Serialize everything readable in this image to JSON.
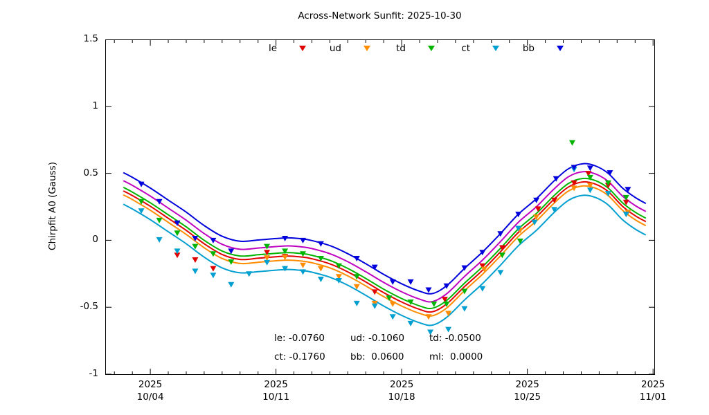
{
  "title": "Across-Network Sunfit: 2025-10-30",
  "ylabel": "Chirpfit A0 (Gauss)",
  "chart_data": {
    "type": "line",
    "title": "Across-Network Sunfit: 2025-10-30",
    "xlabel": "",
    "ylabel": "Chirpfit A0 (Gauss)",
    "ylim": [
      -1,
      1.5
    ],
    "yticks": [
      {
        "v": 1.5,
        "label": "1.5"
      },
      {
        "v": 1,
        "label": "1"
      },
      {
        "v": 0.5,
        "label": "0.5"
      },
      {
        "v": 0,
        "label": "0"
      },
      {
        "v": -0.5,
        "label": "-0.5"
      },
      {
        "v": -1,
        "label": "-1"
      }
    ],
    "x_axis": {
      "start_day": 1.49,
      "end_day": 32.07,
      "tick_days": [
        2,
        3,
        4,
        5,
        6,
        7,
        8,
        9,
        10,
        11,
        12,
        13,
        14,
        15,
        16,
        17,
        18,
        19,
        20,
        21,
        22,
        23,
        24,
        25,
        26,
        27,
        28,
        29,
        30,
        31,
        32
      ],
      "major_ticks": [
        {
          "day": 4,
          "year": "2025",
          "date": "10/04"
        },
        {
          "day": 11,
          "year": "2025",
          "date": "10/11"
        },
        {
          "day": 18,
          "year": "2025",
          "date": "10/18"
        },
        {
          "day": 25,
          "year": "2025",
          "date": "10/25"
        },
        {
          "day": 32,
          "year": "2025",
          "date": "11/01"
        }
      ]
    },
    "legend": [
      "le",
      "ud",
      "td",
      "ct",
      "bb"
    ],
    "colors": {
      "le": "#e00000",
      "ud": "#ff8c00",
      "td": "#00b400",
      "ct": "#009fd0",
      "bb": "#0000dd",
      "ml": "#c000c0"
    },
    "offsets": {
      "le": -0.076,
      "ud": -0.106,
      "td": -0.05,
      "ct": -0.176,
      "bb": 0.06,
      "ml": 0.0
    },
    "base_curve": [
      [
        2.5,
        0.445
      ],
      [
        3,
        0.41
      ],
      [
        4,
        0.33
      ],
      [
        5,
        0.24
      ],
      [
        6,
        0.15
      ],
      [
        7,
        0.05
      ],
      [
        8,
        -0.03
      ],
      [
        9,
        -0.067
      ],
      [
        10,
        -0.058
      ],
      [
        11,
        -0.047
      ],
      [
        11.7,
        -0.042
      ],
      [
        12.5,
        -0.05
      ],
      [
        13,
        -0.062
      ],
      [
        14,
        -0.1
      ],
      [
        15,
        -0.16
      ],
      [
        16,
        -0.235
      ],
      [
        17,
        -0.315
      ],
      [
        18,
        -0.385
      ],
      [
        19,
        -0.44
      ],
      [
        19.7,
        -0.458
      ],
      [
        20.5,
        -0.4
      ],
      [
        21.5,
        -0.27
      ],
      [
        22.5,
        -0.148
      ],
      [
        23.5,
        -0.01
      ],
      [
        24.5,
        0.135
      ],
      [
        25.5,
        0.25
      ],
      [
        26.5,
        0.385
      ],
      [
        27.3,
        0.475
      ],
      [
        28.1,
        0.512
      ],
      [
        28.8,
        0.495
      ],
      [
        29.5,
        0.44
      ],
      [
        30.3,
        0.33
      ],
      [
        31,
        0.26
      ],
      [
        31.6,
        0.215
      ]
    ],
    "markers": {
      "le": [
        [
          5.5,
          -0.11
        ],
        [
          6.5,
          -0.145
        ],
        [
          7.5,
          -0.21
        ],
        [
          10.5,
          -0.09
        ],
        [
          11.5,
          -0.12
        ],
        [
          16.5,
          -0.385
        ],
        [
          20.4,
          -0.44
        ],
        [
          22.5,
          -0.19
        ],
        [
          23.6,
          -0.055
        ],
        [
          25.6,
          0.235
        ],
        [
          26.5,
          0.3
        ],
        [
          27.6,
          0.43
        ],
        [
          28.4,
          0.5
        ],
        [
          29.5,
          0.41
        ],
        [
          30.5,
          0.285
        ]
      ],
      "ud": [
        [
          10.5,
          -0.13
        ],
        [
          11.5,
          -0.125
        ],
        [
          12.5,
          -0.185
        ],
        [
          13.5,
          -0.21
        ],
        [
          14.5,
          -0.27
        ],
        [
          15.5,
          -0.345
        ],
        [
          16.5,
          -0.47
        ],
        [
          17.5,
          -0.475
        ],
        [
          19.5,
          -0.57
        ],
        [
          20.6,
          -0.545
        ],
        [
          22.6,
          -0.215
        ],
        [
          24.6,
          0.075
        ],
        [
          25.5,
          0.175
        ],
        [
          27.6,
          0.39
        ],
        [
          28.5,
          0.41
        ],
        [
          30.6,
          0.21
        ]
      ],
      "td": [
        [
          3.5,
          0.29
        ],
        [
          4.5,
          0.15
        ],
        [
          5.5,
          0.055
        ],
        [
          6.5,
          -0.045
        ],
        [
          7.5,
          -0.1
        ],
        [
          8.5,
          -0.16
        ],
        [
          10.5,
          -0.045
        ],
        [
          11.5,
          -0.08
        ],
        [
          12.5,
          -0.1
        ],
        [
          13.5,
          -0.135
        ],
        [
          14.5,
          -0.19
        ],
        [
          15.5,
          -0.27
        ],
        [
          17.3,
          -0.43
        ],
        [
          18.5,
          -0.46
        ],
        [
          19.8,
          -0.475
        ],
        [
          20.5,
          -0.475
        ],
        [
          21.5,
          -0.38
        ],
        [
          23.6,
          -0.11
        ],
        [
          24.6,
          -0.005
        ],
        [
          25.4,
          0.135
        ],
        [
          27.5,
          0.73
        ],
        [
          28.5,
          0.47
        ],
        [
          29.5,
          0.43
        ],
        [
          30.5,
          0.32
        ]
      ],
      "ct": [
        [
          3.5,
          0.22
        ],
        [
          4.5,
          0.005
        ],
        [
          5.5,
          -0.08
        ],
        [
          6.5,
          -0.23
        ],
        [
          7.5,
          -0.26
        ],
        [
          8.5,
          -0.33
        ],
        [
          9.5,
          -0.25
        ],
        [
          10.5,
          -0.165
        ],
        [
          11.5,
          -0.21
        ],
        [
          12.5,
          -0.235
        ],
        [
          13.5,
          -0.29
        ],
        [
          14.5,
          -0.3
        ],
        [
          15.5,
          -0.47
        ],
        [
          16.5,
          -0.49
        ],
        [
          17.5,
          -0.57
        ],
        [
          18.5,
          -0.62
        ],
        [
          19.6,
          -0.685
        ],
        [
          20.6,
          -0.665
        ],
        [
          21.5,
          -0.51
        ],
        [
          22.5,
          -0.36
        ],
        [
          23.5,
          -0.24
        ],
        [
          24.5,
          0.09
        ],
        [
          25.4,
          0.135
        ],
        [
          26.5,
          0.23
        ],
        [
          27.6,
          0.53
        ],
        [
          28.5,
          0.375
        ],
        [
          29.5,
          0.35
        ],
        [
          30.5,
          0.195
        ]
      ],
      "bb": [
        [
          3.5,
          0.42
        ],
        [
          4.5,
          0.29
        ],
        [
          5.5,
          0.13
        ],
        [
          6.5,
          0.015
        ],
        [
          7.5,
          0.0
        ],
        [
          8.5,
          -0.08
        ],
        [
          11.5,
          0.015
        ],
        [
          12.5,
          0.0
        ],
        [
          13.5,
          -0.025
        ],
        [
          15.5,
          -0.135
        ],
        [
          16.5,
          -0.2
        ],
        [
          17.5,
          -0.31
        ],
        [
          18.5,
          -0.31
        ],
        [
          19.5,
          -0.37
        ],
        [
          20.5,
          -0.34
        ],
        [
          21.5,
          -0.205
        ],
        [
          22.5,
          -0.09
        ],
        [
          23.5,
          0.05
        ],
        [
          24.5,
          0.195
        ],
        [
          25.5,
          0.3
        ],
        [
          26.6,
          0.46
        ],
        [
          27.6,
          0.545
        ],
        [
          28.5,
          0.54
        ],
        [
          29.6,
          0.505
        ],
        [
          30.6,
          0.38
        ]
      ]
    },
    "annotations": [
      [
        {
          "key": "le",
          "value": "-0.0760"
        },
        {
          "key": "ud",
          "value": "-0.1060"
        },
        {
          "key": "td",
          "value": "-0.0500"
        }
      ],
      [
        {
          "key": "ct",
          "value": "-0.1760"
        },
        {
          "key": "bb",
          "value": " 0.0600"
        },
        {
          "key": "ml",
          "value": " 0.0000"
        }
      ]
    ]
  }
}
